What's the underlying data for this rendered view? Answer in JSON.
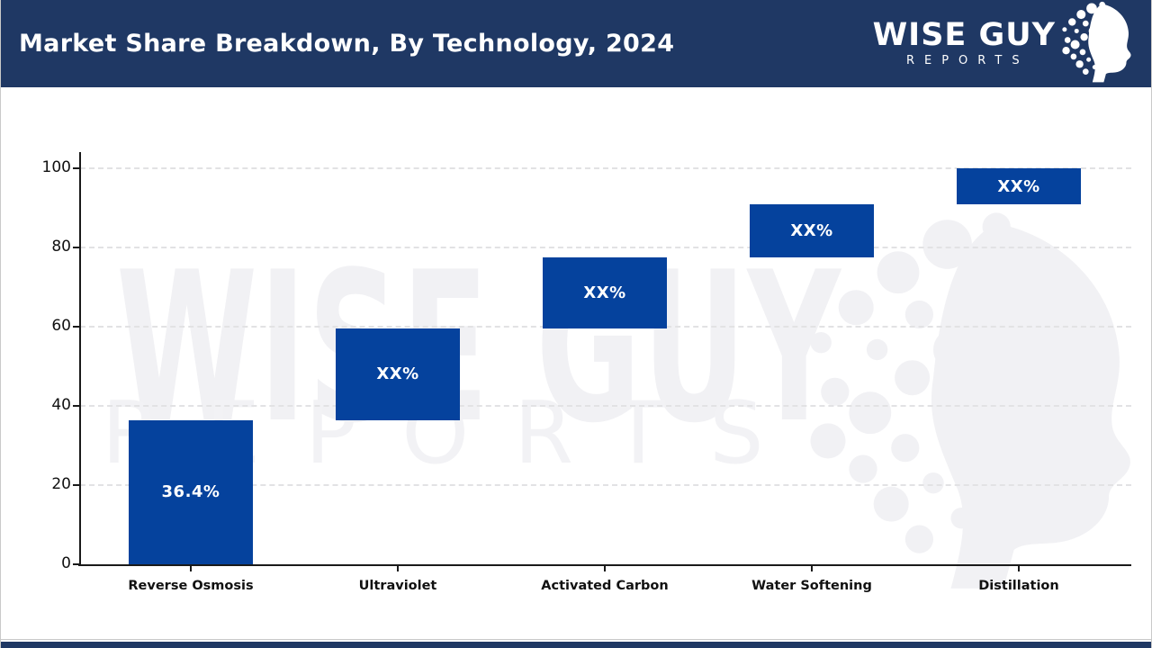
{
  "header": {
    "title": "Market Share Breakdown, By Technology, 2024",
    "logo": {
      "line1": "WISE GUY",
      "line2": "REPORTS"
    }
  },
  "watermark": {
    "line1": "WISE GUY",
    "line2": "REPORTS"
  },
  "chart_data": {
    "type": "bar",
    "subtype": "waterfall",
    "title": "Market Share Breakdown, By Technology, 2024",
    "categories": [
      "Reverse Osmosis",
      "Ultraviolet",
      "Activated Carbon",
      "Water Softening",
      "Distillation"
    ],
    "segments": [
      {
        "category": "Reverse Osmosis",
        "start": 0,
        "end": 36.4,
        "value": 36.4,
        "label": "36.4%"
      },
      {
        "category": "Ultraviolet",
        "start": 36.4,
        "end": 59.6,
        "value": 23.2,
        "label": "XX%"
      },
      {
        "category": "Activated Carbon",
        "start": 59.6,
        "end": 77.5,
        "value": 17.9,
        "label": "XX%"
      },
      {
        "category": "Water Softening",
        "start": 77.5,
        "end": 90.9,
        "value": 13.4,
        "label": "XX%"
      },
      {
        "category": "Distillation",
        "start": 90.9,
        "end": 100.0,
        "value": 9.1,
        "label": "XX%"
      }
    ],
    "yticks": [
      0,
      20,
      40,
      60,
      80,
      100
    ],
    "ylim": [
      0,
      104
    ],
    "xlabel": "",
    "ylabel": "",
    "grid": "horizontal-dashed",
    "legend": "none",
    "bar_color": "#05429d",
    "bar_label_color": "#ffffff"
  },
  "colors": {
    "header_bg": "#1f3864",
    "footer_bg": "#1f3864",
    "bar": "#05429d",
    "gridline": "#e2e2e4",
    "axis": "#1a1a1a",
    "watermark": "#f1f1f4",
    "page_border": "#c9c9c9"
  }
}
